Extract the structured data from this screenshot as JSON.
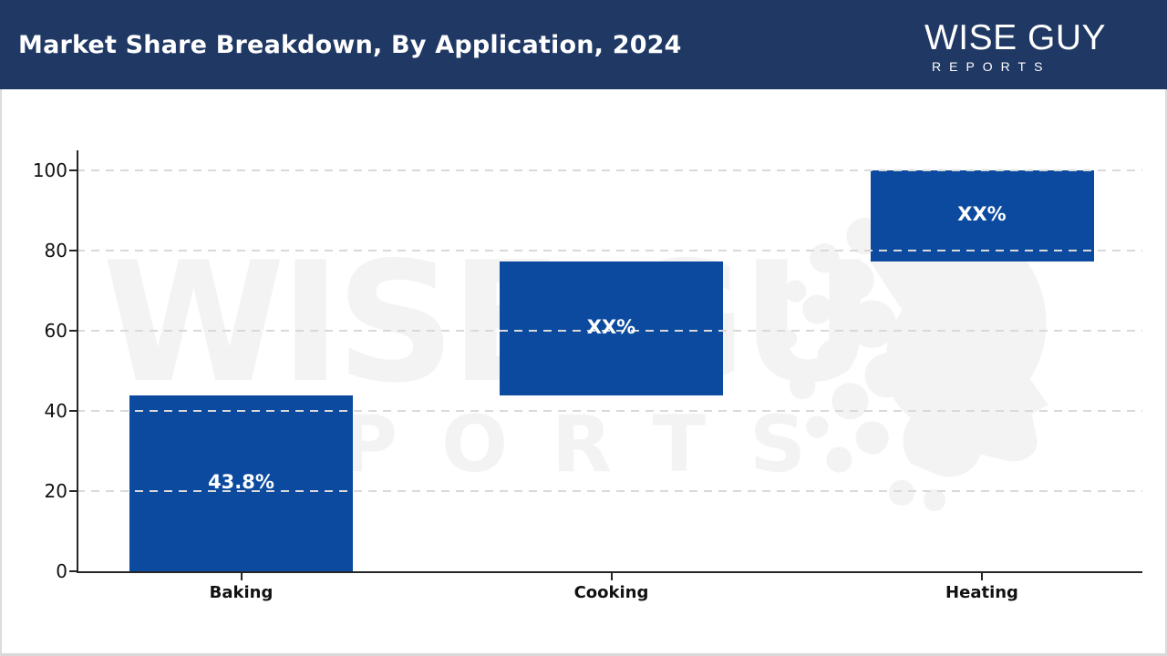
{
  "header": {
    "title": "Market Share Breakdown, By Application, 2024",
    "logo": {
      "primary": "WISE GUY",
      "secondary": "REPORTS"
    }
  },
  "watermark": {
    "primary": "WISE GUY",
    "secondary": "REPORTS"
  },
  "chart_data": {
    "type": "bar",
    "subtype": "waterfall",
    "title": "Market Share Breakdown, By Application, 2024",
    "categories": [
      "Baking",
      "Cooking",
      "Heating"
    ],
    "bars": [
      {
        "category": "Baking",
        "start": 0,
        "end": 43.8,
        "label": "43.8%"
      },
      {
        "category": "Cooking",
        "start": 43.8,
        "end": 77.2,
        "label": "XX%"
      },
      {
        "category": "Heating",
        "start": 77.2,
        "end": 100,
        "label": "XX%"
      }
    ],
    "ylim": [
      0,
      105
    ],
    "yticks": [
      0,
      20,
      40,
      60,
      80,
      100
    ],
    "grid": "horizontal-dashed",
    "legend": "none",
    "bar_color": "#0b4a9e",
    "value_label_color": "#ffffff",
    "axis_color": "#262626",
    "grid_color": "#d9d9d9"
  },
  "colors": {
    "header_bg": "#1f3864",
    "header_text": "#ffffff",
    "watermark": "#f3f3f3",
    "page_bg": "#ffffff"
  }
}
